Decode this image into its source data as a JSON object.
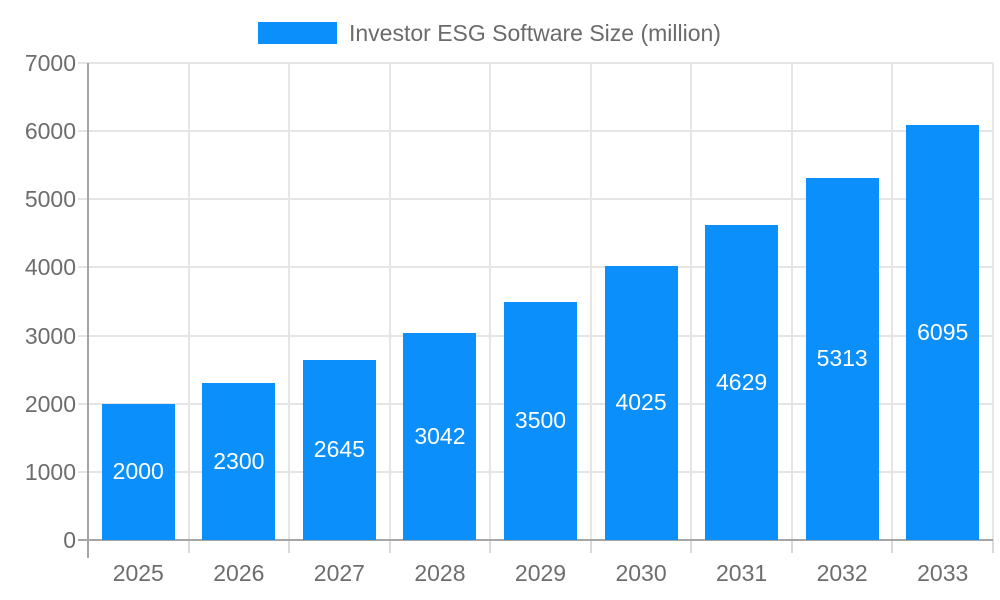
{
  "chart_data": {
    "type": "bar",
    "title": "Investor ESG Software Size (million)",
    "categories": [
      "2025",
      "2026",
      "2027",
      "2028",
      "2029",
      "2030",
      "2031",
      "2032",
      "2033"
    ],
    "values": [
      2000,
      2300,
      2645,
      3042,
      3500,
      4025,
      4629,
      5313,
      6095
    ],
    "xlabel": "",
    "ylabel": "",
    "ylim": [
      0,
      7000
    ],
    "ytick_step": 1000,
    "grid": true,
    "legend_position": "top",
    "legend_entries": [
      "Investor ESG Software Size (million)"
    ],
    "colors": {
      "bar": "#0a8ffb",
      "value_label": "#ffffff",
      "axis_label": "#6d6d6d",
      "legend_label": "#6b6b6b",
      "gridline": "#e5e5e5",
      "axis_line": "#a6a6a6",
      "tick": "#d9d9d9"
    }
  }
}
